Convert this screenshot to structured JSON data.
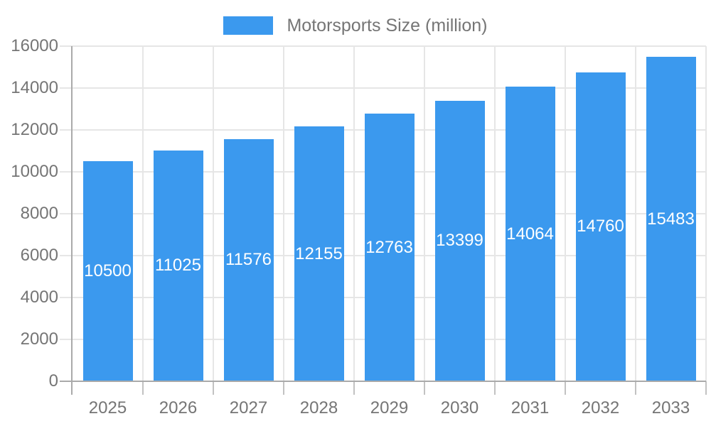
{
  "chart_data": {
    "type": "bar",
    "title": "",
    "legend": {
      "label": "Motorsports Size (million)",
      "position": "top"
    },
    "categories": [
      "2025",
      "2026",
      "2027",
      "2028",
      "2029",
      "2030",
      "2031",
      "2032",
      "2033"
    ],
    "series": [
      {
        "name": "Motorsports Size (million)",
        "values": [
          10500,
          11025,
          11576,
          12155,
          12763,
          13399,
          14064,
          14760,
          15483
        ]
      }
    ],
    "xlabel": "",
    "ylabel": "",
    "ylim": [
      0,
      16000
    ],
    "y_ticks": [
      0,
      2000,
      4000,
      6000,
      8000,
      10000,
      12000,
      14000,
      16000
    ],
    "grid": true,
    "bar_labels_inside": true,
    "colors": {
      "bar": "#3b99ee",
      "axis": "#aaaaaa",
      "grid": "#e6e6e6",
      "minor_tick": "#c2c2c2",
      "tick_label": "#757575",
      "bar_label": "#ffffff",
      "background": "#ffffff"
    }
  }
}
